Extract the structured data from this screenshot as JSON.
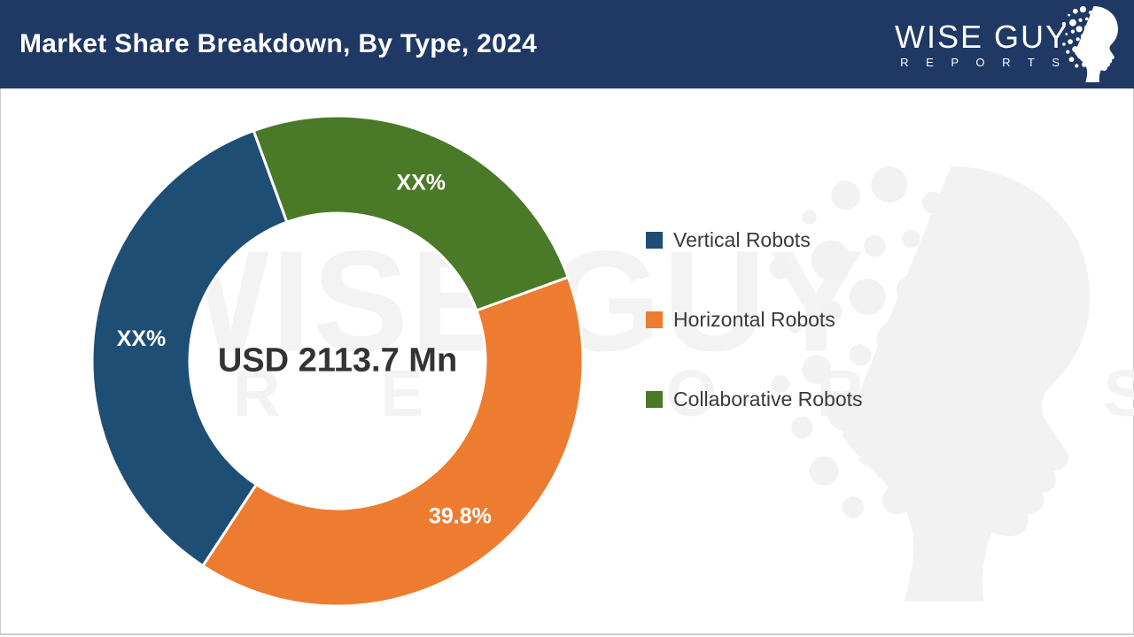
{
  "header": {
    "title": "Market Share Breakdown, By Type, 2024",
    "logo": {
      "line1": "WISE GUY",
      "line2": "R E P O R T S"
    }
  },
  "watermark": {
    "line1": "WISE GUY",
    "line2": "R E P O R T S"
  },
  "chart_data": {
    "type": "pie",
    "subtype": "donut",
    "title": "Market Share Breakdown, By Type, 2024",
    "center_label": "USD 2113.7 Mn",
    "inner_radius_ratio": 0.6,
    "start_angle_deg": 110,
    "direction": "counterclockwise",
    "legend_position": "right",
    "grid": false,
    "slices": [
      {
        "label": "Vertical Robots",
        "display_label": "XX%",
        "arc_pct": 35.2,
        "color": "#1F4E74"
      },
      {
        "label": "Horizontal Robots",
        "display_label": "39.8%",
        "arc_pct": 39.8,
        "color": "#ED7C30"
      },
      {
        "label": "Collaborative Robots",
        "display_label": "XX%",
        "arc_pct": 25.0,
        "color": "#4A7A28"
      }
    ]
  },
  "colors": {
    "header_bg": "#203864",
    "title_text": "#ffffff",
    "center_text": "#333333",
    "legend_text": "#3a3a3a",
    "watermark": "#f3f3f3",
    "watermark_head": "#f2f2f2",
    "logo_color": "#ffffff",
    "slice_stroke": "#ffffff",
    "border": "#cccccc"
  }
}
